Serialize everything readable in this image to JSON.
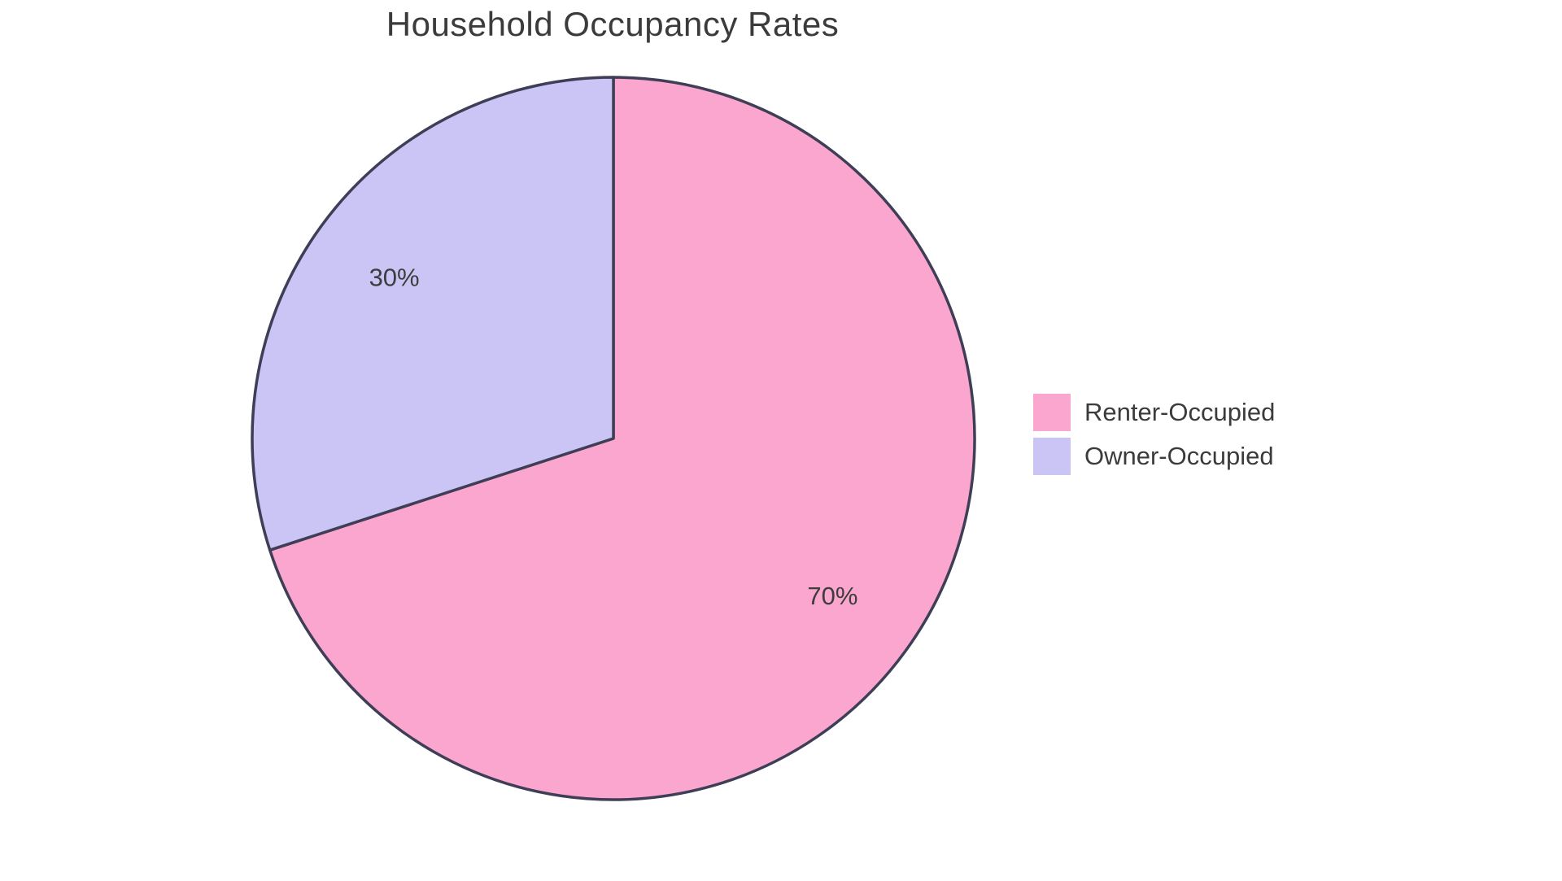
{
  "page": {
    "background_color": "#ffffff",
    "text_color": "#3b3b3b"
  },
  "chart_data": {
    "type": "pie",
    "title": "Household Occupancy Rates",
    "categories": [
      "Renter-Occupied",
      "Owner-Occupied"
    ],
    "values": [
      70,
      30
    ],
    "slices": [
      {
        "label": "Renter-Occupied",
        "value": 70,
        "percent_label": "70%",
        "color": "#FBA6CE"
      },
      {
        "label": "Owner-Occupied",
        "value": 30,
        "percent_label": "30%",
        "color": "#CBC5F5"
      }
    ],
    "legend_position": "right",
    "start_angle_deg": 90,
    "direction": "clockwise",
    "stroke_color": "#3E3E56",
    "stroke_width": 3.5,
    "label_color": "#3D3D3D"
  }
}
